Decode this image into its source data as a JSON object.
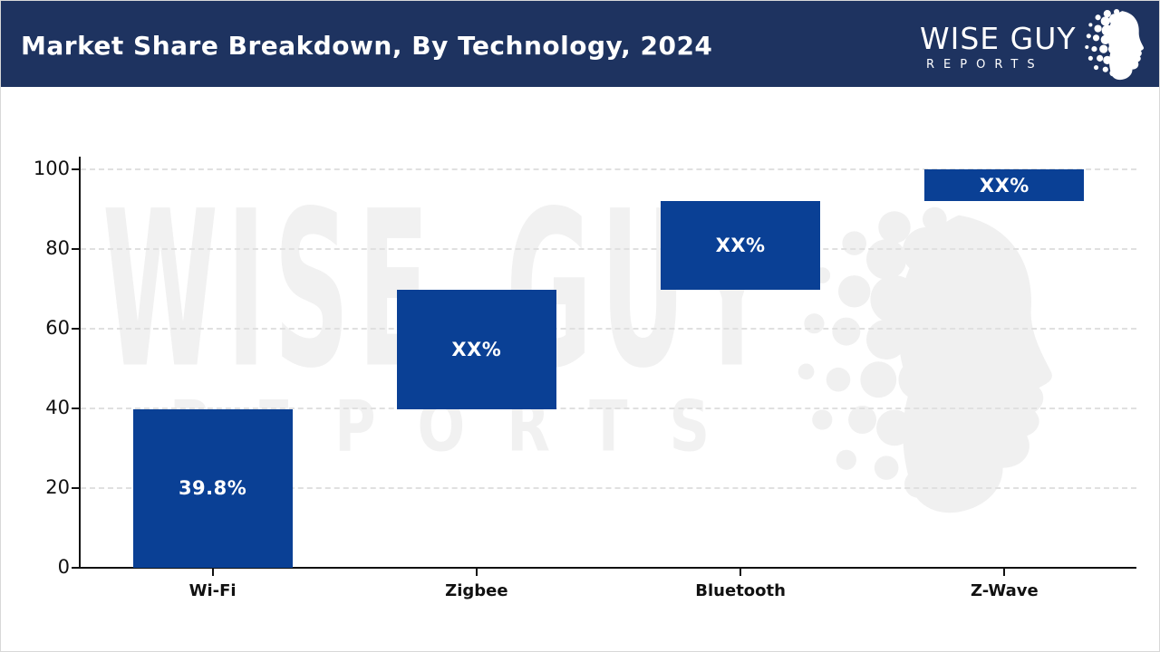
{
  "header": {
    "title": "Market Share Breakdown, By Technology, 2024",
    "logo": {
      "wordmark": "WISE GUY",
      "subtext": "REPORTS"
    }
  },
  "watermark": {
    "line1": "WISE GUY",
    "line2": "REPORTS"
  },
  "colors": {
    "header_bg": "#1e3360",
    "bar": "#0a4095",
    "bar_label": "#ffffff",
    "gridline": "#e0e0e0",
    "axis": "#111111",
    "watermark": "#f1f1f1"
  },
  "chart_data": {
    "type": "waterfall",
    "title": "Market Share Breakdown, By Technology, 2024",
    "categories": [
      "Wi-Fi",
      "Zigbee",
      "Bluetooth",
      "Z-Wave"
    ],
    "segments": [
      {
        "category": "Wi-Fi",
        "start": 0,
        "end": 39.8,
        "label": "39.8%"
      },
      {
        "category": "Zigbee",
        "start": 39.8,
        "end": 69.8,
        "label": "XX%"
      },
      {
        "category": "Bluetooth",
        "start": 69.8,
        "end": 92,
        "label": "XX%"
      },
      {
        "category": "Z-Wave",
        "start": 92,
        "end": 100,
        "label": "XX%"
      }
    ],
    "y_ticks": [
      0,
      20,
      40,
      60,
      80,
      100
    ],
    "ylim": [
      0,
      100
    ],
    "grid": "horizontal-dashed",
    "legend": "none"
  }
}
